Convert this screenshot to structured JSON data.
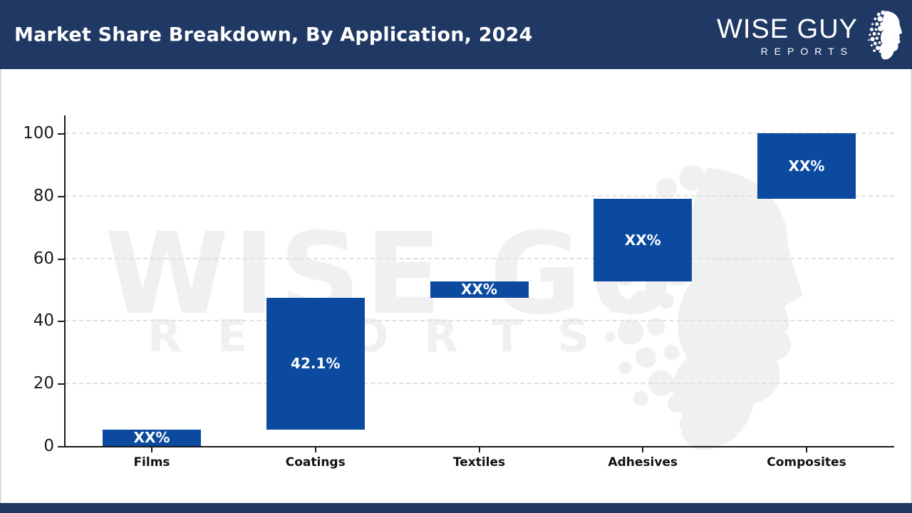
{
  "header": {
    "title": "Market Share Breakdown, By Application, 2024",
    "logo": {
      "line1": "WISE GUY",
      "line2": "REPORTS"
    }
  },
  "watermark": {
    "line1": "WISE GUY",
    "line2": "REPORTS"
  },
  "colors": {
    "header_bg": "#1f3864",
    "bar": "#0c4aa0",
    "grid": "#e0e0e0",
    "axis": "#1a1a1a",
    "watermark": "#f0f0f2"
  },
  "chart_data": {
    "type": "bar",
    "subtype": "waterfall",
    "title": "Market Share Breakdown, By Application, 2024",
    "categories": [
      "Films",
      "Coatings",
      "Textiles",
      "Adhesives",
      "Composites"
    ],
    "segments": [
      {
        "category": "Films",
        "start": 0,
        "end": 5.3,
        "label": "XX%"
      },
      {
        "category": "Coatings",
        "start": 5.3,
        "end": 47.4,
        "label": "42.1%"
      },
      {
        "category": "Textiles",
        "start": 47.4,
        "end": 52.6,
        "label": "XX%"
      },
      {
        "category": "Adhesives",
        "start": 52.6,
        "end": 79.0,
        "label": "XX%"
      },
      {
        "category": "Composites",
        "start": 79.0,
        "end": 100,
        "label": "XX%"
      }
    ],
    "xlabel": "",
    "ylabel": "",
    "y_axis": {
      "range": [
        0,
        100
      ],
      "ticks": [
        0,
        20,
        40,
        60,
        80,
        100
      ]
    },
    "grid": "horizontal-dashed",
    "legend": "none"
  }
}
